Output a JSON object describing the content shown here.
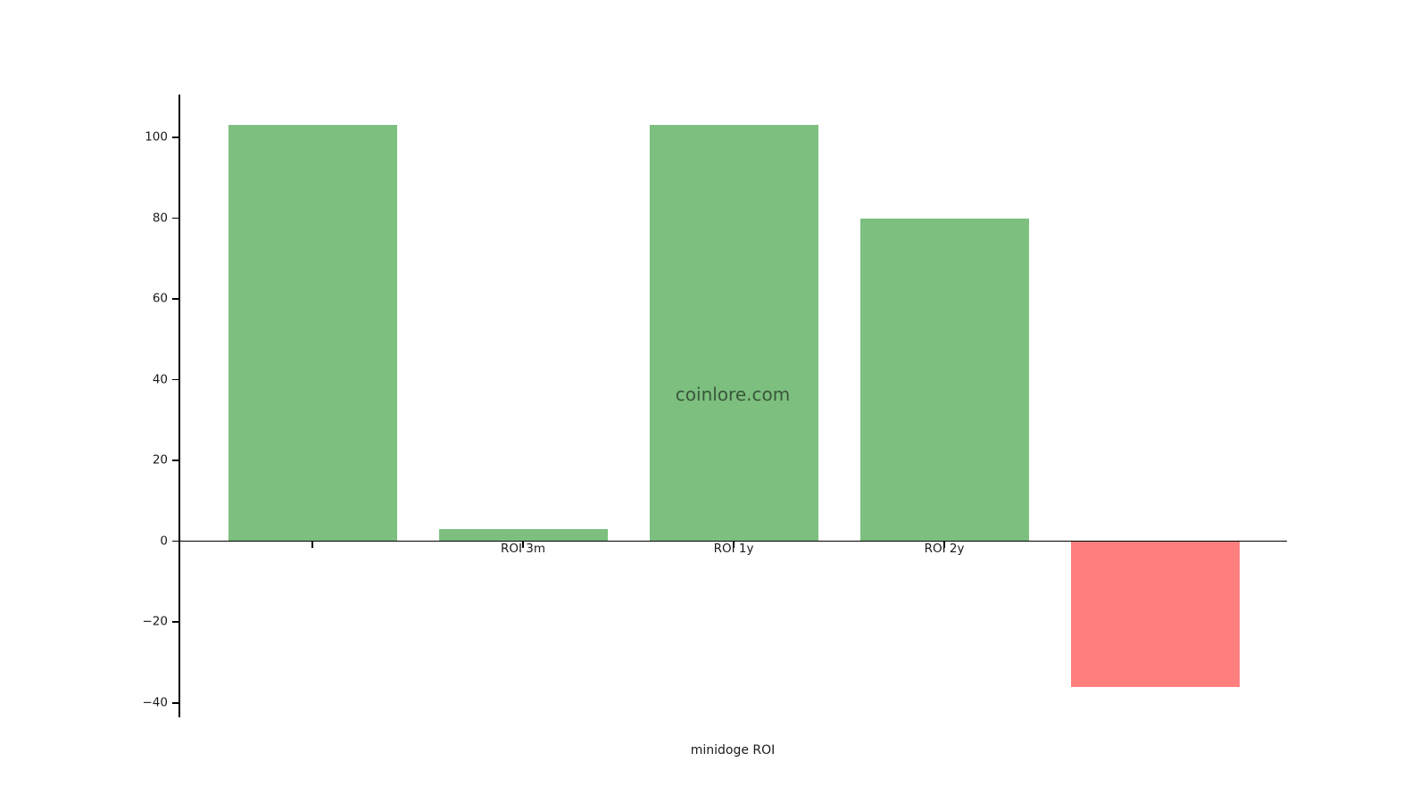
{
  "watermark": {
    "text": "coinlore.com"
  },
  "chart_data": {
    "type": "bar",
    "title": "",
    "xlabel": "minidoge ROI",
    "ylabel": "",
    "categories": [
      "",
      "ROI 3m",
      "ROI 1y",
      "ROI 2y",
      ""
    ],
    "values": [
      103,
      3,
      103,
      80,
      -36
    ],
    "bar_colors": [
      "#7dbf7f",
      "#7dbf7f",
      "#7dbf7f",
      "#7dbf7f",
      "#ff7f7f"
    ],
    "positive_color": "#7dbf7f",
    "negative_color": "#ff7f7f",
    "yticks": [
      {
        "value": 100,
        "label": "100"
      },
      {
        "value": 80,
        "label": "80"
      },
      {
        "value": 60,
        "label": "60"
      },
      {
        "value": 40,
        "label": "40"
      },
      {
        "value": 20,
        "label": "20"
      },
      {
        "value": 0,
        "label": "0"
      },
      {
        "value": -20,
        "label": "−20"
      },
      {
        "value": -40,
        "label": "−40"
      }
    ],
    "xticks": [
      {
        "index": 0,
        "label": ""
      },
      {
        "index": 1,
        "label": "ROI 3m"
      },
      {
        "index": 2,
        "label": "ROI 1y"
      },
      {
        "index": 3,
        "label": "ROI 2y"
      }
    ],
    "ylim": [
      -43.6,
      110.6
    ],
    "grid": false,
    "legend": null,
    "axis_color": "#000000"
  }
}
